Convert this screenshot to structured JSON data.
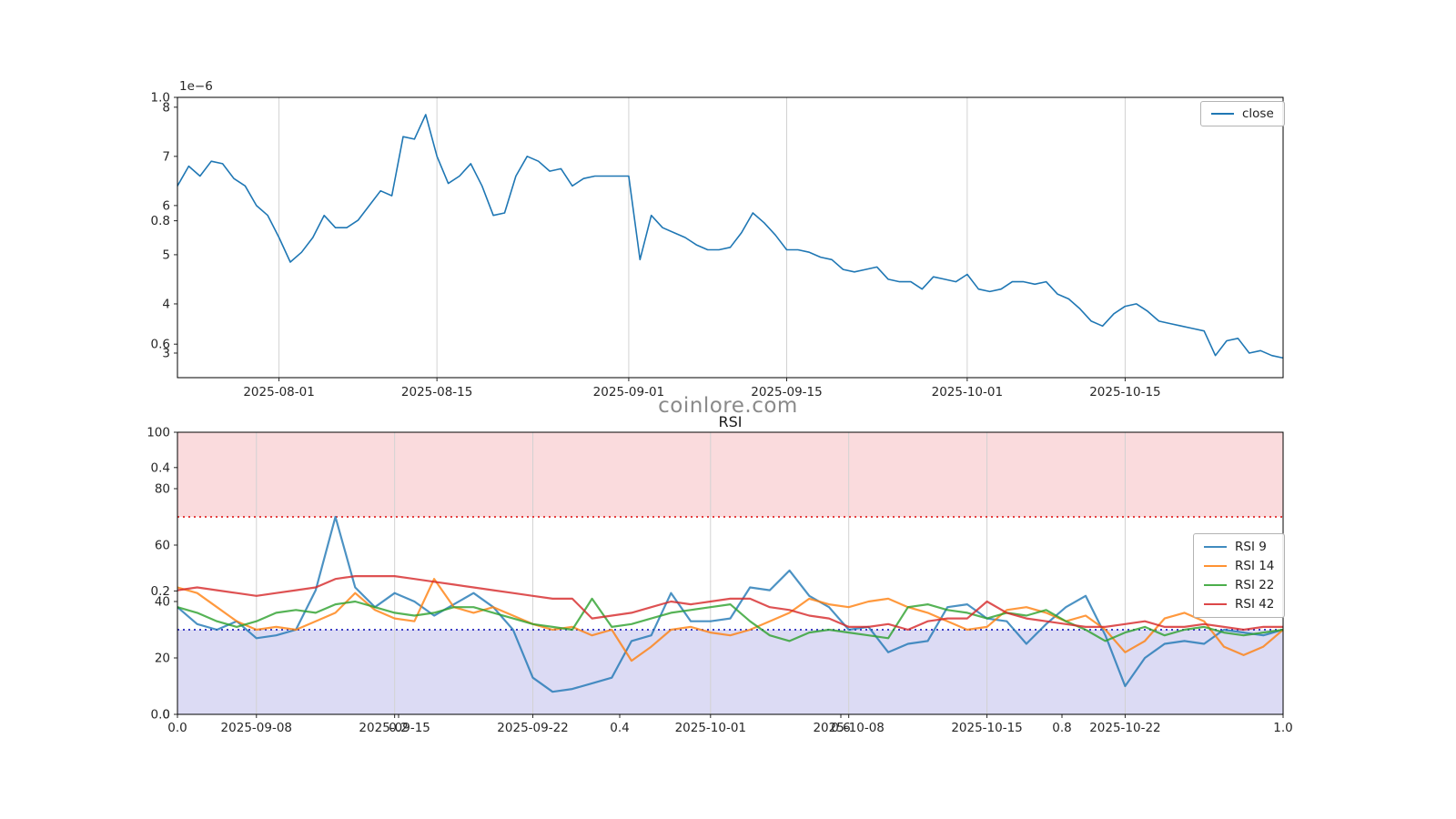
{
  "watermark": "coinlore.com",
  "outer_axes": {
    "x_tick_labels": [
      "0.0",
      "0.2",
      "0.4",
      "0.6",
      "0.8",
      "1.0"
    ],
    "y_tick_labels": [
      "0.0",
      "0.2",
      "0.4",
      "0.6",
      "0.8",
      "1.0"
    ]
  },
  "chart_data": [
    {
      "type": "line",
      "title": "",
      "y_offset_label": "1e−6",
      "unit_scale": "1e-6",
      "x_start_date": "2025-07-23",
      "x_range_days": [
        0,
        98
      ],
      "x_tick_labels": [
        "2025-08-01",
        "2025-08-15",
        "2025-09-01",
        "2025-09-15",
        "2025-10-01",
        "2025-10-15"
      ],
      "x_tick_days": [
        9,
        23,
        40,
        54,
        70,
        84
      ],
      "y_ticks": [
        3,
        4,
        5,
        6,
        7,
        8
      ],
      "ylim": [
        2.5,
        8.2
      ],
      "grid": "vertical",
      "legend_position": "upper right",
      "series": [
        {
          "name": "close",
          "color": "#1f77b4",
          "values": [
            6.4,
            6.8,
            6.6,
            6.9,
            6.85,
            6.55,
            6.4,
            6.0,
            5.8,
            5.35,
            4.85,
            5.05,
            5.35,
            5.8,
            5.55,
            5.55,
            5.7,
            6.0,
            6.3,
            6.2,
            7.4,
            7.35,
            7.85,
            7.0,
            6.45,
            6.6,
            6.85,
            6.4,
            5.8,
            5.85,
            6.6,
            7.0,
            6.9,
            6.7,
            6.75,
            6.4,
            6.55,
            6.6,
            6.6,
            6.6,
            6.6,
            4.9,
            5.8,
            5.55,
            5.45,
            5.35,
            5.2,
            5.1,
            5.1,
            5.15,
            5.45,
            5.85,
            5.65,
            5.4,
            5.1,
            5.1,
            5.05,
            4.95,
            4.9,
            4.7,
            4.65,
            4.7,
            4.75,
            4.5,
            4.45,
            4.45,
            4.3,
            4.55,
            4.5,
            4.45,
            4.6,
            4.3,
            4.25,
            4.3,
            4.45,
            4.45,
            4.4,
            4.45,
            4.2,
            4.1,
            3.9,
            3.65,
            3.55,
            3.8,
            3.95,
            4.0,
            3.85,
            3.65,
            3.6,
            3.55,
            3.5,
            3.45,
            2.95,
            3.25,
            3.3,
            3.0,
            3.05,
            2.95,
            2.9
          ]
        }
      ]
    },
    {
      "type": "line",
      "title": "RSI",
      "x_start_date": "2025-09-04",
      "x_range_days": [
        0,
        56
      ],
      "x_tick_labels": [
        "2025-09-08",
        "2025-09-15",
        "2025-09-22",
        "2025-10-01",
        "2025-10-08",
        "2025-10-15",
        "2025-10-22"
      ],
      "x_tick_days": [
        4,
        11,
        18,
        27,
        34,
        41,
        48
      ],
      "y_ticks": [
        0,
        20,
        40,
        60,
        80,
        100
      ],
      "ylim": [
        0,
        100
      ],
      "grid": "vertical",
      "overbought_level": 70,
      "oversold_level": 30,
      "overbought_band_color": "#fadbdd",
      "oversold_band_color": "#dcdbf4",
      "overbought_line_color": "#e02828",
      "oversold_line_color": "#2626bd",
      "legend_position": "right",
      "series": [
        {
          "name": "RSI 9",
          "color": "#1f77b4",
          "values": [
            38,
            32,
            30,
            33,
            27,
            28,
            30,
            44,
            70,
            45,
            38,
            43,
            40,
            35,
            39,
            43,
            38,
            30,
            13,
            8,
            9,
            11,
            13,
            26,
            28,
            43,
            33,
            33,
            34,
            45,
            44,
            51,
            42,
            38,
            30,
            31,
            22,
            25,
            26,
            38,
            39,
            34,
            33,
            25,
            32,
            38,
            42,
            28,
            10,
            20,
            25,
            26,
            25,
            30,
            29,
            28,
            30
          ]
        },
        {
          "name": "RSI 14",
          "color": "#ff7f0e",
          "values": [
            45,
            43,
            38,
            33,
            30,
            31,
            30,
            33,
            36,
            43,
            37,
            34,
            33,
            48,
            38,
            36,
            38,
            35,
            32,
            30,
            31,
            28,
            30,
            19,
            24,
            30,
            31,
            29,
            28,
            30,
            33,
            36,
            41,
            39,
            38,
            40,
            41,
            38,
            36,
            33,
            30,
            31,
            37,
            38,
            36,
            33,
            35,
            30,
            22,
            26,
            34,
            36,
            33,
            24,
            21,
            24,
            30
          ]
        },
        {
          "name": "RSI 22",
          "color": "#2ca02c",
          "values": [
            38,
            36,
            33,
            31,
            33,
            36,
            37,
            36,
            39,
            40,
            38,
            36,
            35,
            36,
            38,
            38,
            36,
            34,
            32,
            31,
            30,
            41,
            31,
            32,
            34,
            36,
            37,
            38,
            39,
            33,
            28,
            26,
            29,
            30,
            29,
            28,
            27,
            38,
            39,
            37,
            36,
            34,
            36,
            35,
            37,
            33,
            30,
            26,
            29,
            31,
            28,
            30,
            31,
            29,
            28,
            29,
            30
          ]
        },
        {
          "name": "RSI 42",
          "color": "#d62728",
          "values": [
            44,
            45,
            44,
            43,
            42,
            43,
            44,
            45,
            48,
            49,
            49,
            49,
            48,
            47,
            46,
            45,
            44,
            43,
            42,
            41,
            41,
            34,
            35,
            36,
            38,
            40,
            39,
            40,
            41,
            41,
            38,
            37,
            35,
            34,
            31,
            31,
            32,
            30,
            33,
            34,
            34,
            40,
            36,
            34,
            33,
            32,
            31,
            31,
            32,
            33,
            31,
            31,
            32,
            31,
            30,
            31,
            31
          ]
        }
      ]
    }
  ]
}
